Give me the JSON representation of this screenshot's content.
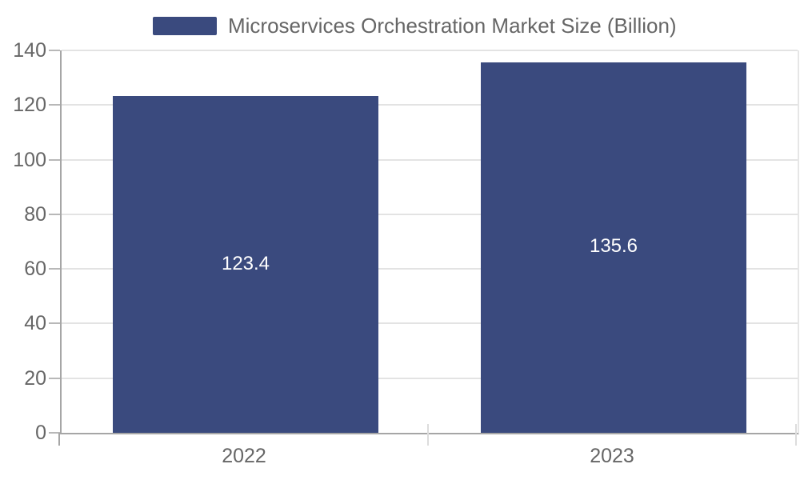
{
  "chart_data": {
    "type": "bar",
    "title": "Microservices Orchestration Market Size (Billion)",
    "legend_entries": [
      "Microservices Orchestration Market Size (Billion)"
    ],
    "legend_position": "top",
    "categories": [
      "2022",
      "2023"
    ],
    "values": [
      123.4,
      135.6
    ],
    "value_labels": [
      "123.4",
      "135.6"
    ],
    "xlabel": "",
    "ylabel": "",
    "ylim": [
      0,
      140
    ],
    "yticks": [
      0,
      20,
      40,
      60,
      80,
      100,
      120,
      140
    ],
    "grid": true,
    "colors": {
      "bar": "#3A4A7E",
      "grid_line": "#E3E3E3",
      "axis_line": "#A6A6A6",
      "boundary_tick": "#DDDDDD",
      "tick_label": "#666666",
      "legend_text": "#666666",
      "value_label": "#FFFFFF",
      "background": "#FFFFFF"
    }
  }
}
